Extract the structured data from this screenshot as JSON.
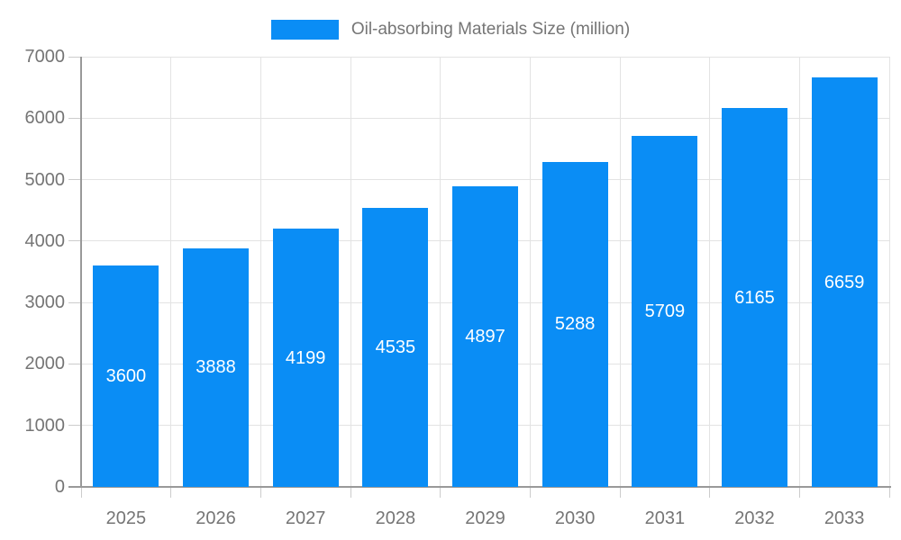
{
  "legend": {
    "label": "Oil-absorbing Materials Size (million)"
  },
  "colors": {
    "bar": "#0a8df5",
    "axis": "#999999",
    "grid": "#e3e3e3",
    "tick": "#cccccc",
    "text": "#757575",
    "value_label": "#ffffff",
    "background": "#ffffff"
  },
  "chart_data": {
    "type": "bar",
    "title": "Oil-absorbing Materials Size (million)",
    "categories": [
      "2025",
      "2026",
      "2027",
      "2028",
      "2029",
      "2030",
      "2031",
      "2032",
      "2033"
    ],
    "values": [
      3600,
      3888,
      4199,
      4535,
      4897,
      5288,
      5709,
      6165,
      6659
    ],
    "xlabel": "",
    "ylabel": "",
    "ylim": [
      0,
      7000
    ],
    "ytick_step": 1000,
    "ytick_labels": [
      "0",
      "1000",
      "2000",
      "3000",
      "4000",
      "5000",
      "6000",
      "7000"
    ],
    "grid": true,
    "legend_position": "top-center",
    "value_labels": "white-centered-inside-bars"
  }
}
